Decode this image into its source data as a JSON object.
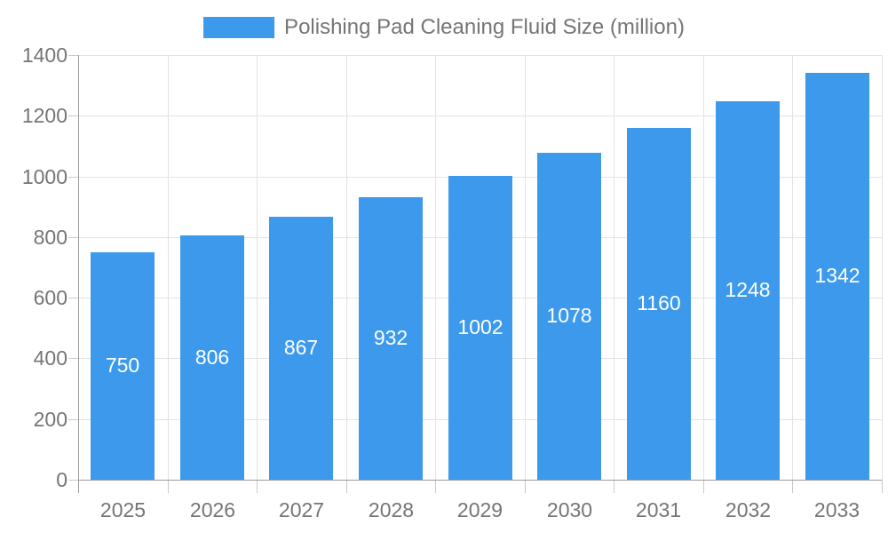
{
  "chart_data": {
    "type": "bar",
    "title": "Polishing Pad Cleaning Fluid Size (million)",
    "legend": {
      "label": "Polishing Pad Cleaning Fluid Size (million)",
      "position": "top-center"
    },
    "categories": [
      "2025",
      "2026",
      "2027",
      "2028",
      "2029",
      "2030",
      "2031",
      "2032",
      "2033"
    ],
    "values": [
      750,
      806,
      867,
      932,
      1002,
      1078,
      1160,
      1248,
      1342
    ],
    "value_labels": [
      "750",
      "806",
      "867",
      "932",
      "1002",
      "1078",
      "1160",
      "1248",
      "1342"
    ],
    "xlabel": "",
    "ylabel": "",
    "ylim": [
      0,
      1400
    ],
    "ytick_step": 200,
    "ytick_labels": [
      "0",
      "200",
      "400",
      "600",
      "800",
      "1000",
      "1200",
      "1400"
    ],
    "grid": true,
    "colors": {
      "bar": "#3C99EC",
      "value_label": "#FFFFFF",
      "axis_text": "#757575",
      "gridline": "#E3E3E3",
      "axis_line": "#9B9B9B",
      "tick_mark": "#C9C9C9",
      "background": "#FFFFFF"
    }
  }
}
